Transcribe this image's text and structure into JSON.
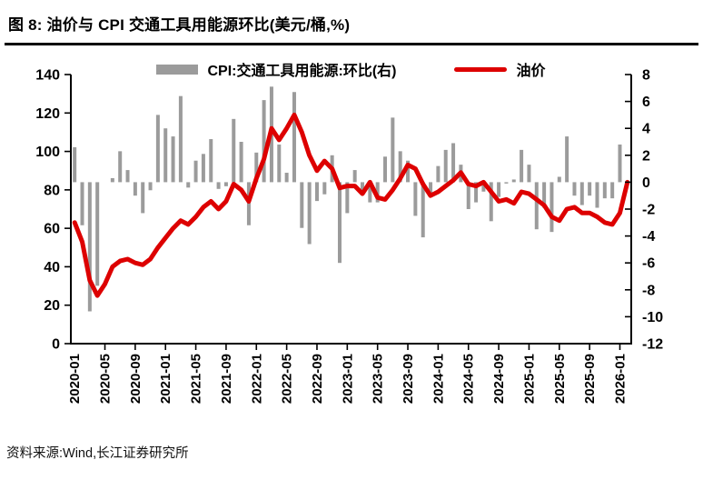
{
  "title": "图 8: 油价与 CPI 交通工具用能源环比(美元/桶,%)",
  "source": "资料来源:Wind,长江证券研究所",
  "legend": {
    "bar_label": "CPI:交通工具用能源:环比(右)",
    "line_label": "油价"
  },
  "chart_data": {
    "type": "bar+line combo",
    "grid": false,
    "legend_position": "top-center",
    "x_axis": {
      "label_every": 4,
      "tick_style": "outward",
      "labels_rotated_deg": 90
    },
    "left_axis": {
      "min": 0,
      "max": 140,
      "ticks": [
        0,
        20,
        40,
        60,
        80,
        100,
        120,
        140
      ],
      "series": "油价 (美元/桶)"
    },
    "right_axis": {
      "min": -12,
      "max": 8,
      "ticks": [
        -12,
        -10,
        -8,
        -6,
        -4,
        -2,
        0,
        2,
        4,
        6,
        8
      ],
      "series": "CPI:交通工具用能源:环比 (%)"
    },
    "colors": {
      "bar": "#9B9B9B",
      "line": "#DD0000",
      "axis": "#000000"
    },
    "categories": [
      "2020-01",
      "2020-02",
      "2020-03",
      "2020-04",
      "2020-05",
      "2020-06",
      "2020-07",
      "2020-08",
      "2020-09",
      "2020-10",
      "2020-11",
      "2020-12",
      "2021-01",
      "2021-02",
      "2021-03",
      "2021-04",
      "2021-05",
      "2021-06",
      "2021-07",
      "2021-08",
      "2021-09",
      "2021-10",
      "2021-11",
      "2021-12",
      "2022-01",
      "2022-02",
      "2022-03",
      "2022-04",
      "2022-05",
      "2022-06",
      "2022-07",
      "2022-08",
      "2022-09",
      "2022-10",
      "2022-11",
      "2022-12",
      "2023-01",
      "2023-02",
      "2023-03",
      "2023-04",
      "2023-05",
      "2023-06",
      "2023-07",
      "2023-08",
      "2023-09",
      "2023-10",
      "2023-11",
      "2023-12",
      "2024-01",
      "2024-02",
      "2024-03",
      "2024-04",
      "2024-05",
      "2024-06",
      "2024-07",
      "2024-08",
      "2024-09",
      "2024-10",
      "2024-11",
      "2024-12",
      "2025-01",
      "2025-02",
      "2025-03",
      "2025-04",
      "2025-05",
      "2025-06",
      "2025-07",
      "2025-08",
      "2025-09",
      "2025-10",
      "2025-11",
      "2025-12",
      "2026-01",
      "2026-02"
    ],
    "series": [
      {
        "name": "CPI:交通工具用能源:环比(右)",
        "type": "bar",
        "axis": "right",
        "values": [
          2.6,
          -3.2,
          -9.6,
          -7.7,
          0,
          0.3,
          2.3,
          0.9,
          -1.0,
          -2.3,
          -0.6,
          5.0,
          4.0,
          3.4,
          6.4,
          -0.4,
          1.6,
          2.1,
          3.2,
          -0.5,
          -0.3,
          4.7,
          3.0,
          -3.2,
          2.2,
          6.1,
          7.1,
          2.8,
          0.7,
          6.7,
          -3.4,
          -4.6,
          -1.4,
          -0.9,
          2.0,
          -6.0,
          -2.3,
          0.9,
          -0.6,
          -1.5,
          -1.5,
          1.9,
          4.8,
          2.3,
          1.6,
          -2.5,
          -4.1,
          -1.1,
          1.2,
          2.4,
          2.9,
          1.3,
          -2.0,
          -1.5,
          -0.7,
          -2.9,
          -1.1,
          -0.1,
          0.2,
          2.4,
          1.3,
          -3.5,
          -1.9,
          -3.7,
          0.4,
          3.4,
          -1.0,
          -1.7,
          -1.0,
          -1.9,
          -1.2,
          -1.2,
          2.8,
          null
        ]
      },
      {
        "name": "油价",
        "type": "line",
        "axis": "left",
        "values": [
          63,
          53,
          33,
          25,
          31,
          40,
          43,
          44,
          42,
          41,
          44,
          50,
          55,
          60,
          64,
          62,
          66,
          71,
          74,
          70,
          74,
          83,
          80,
          74,
          86,
          96,
          112,
          106,
          112,
          119,
          110,
          98,
          90,
          95,
          91,
          81,
          82,
          82,
          78,
          84,
          76,
          75,
          80,
          86,
          93,
          91,
          83,
          77,
          79,
          82,
          85,
          89,
          83,
          82,
          84,
          79,
          74,
          75,
          73,
          79,
          78,
          75,
          72,
          66,
          64,
          70,
          71,
          68,
          68,
          66,
          63,
          62,
          68,
          84
        ]
      }
    ]
  }
}
